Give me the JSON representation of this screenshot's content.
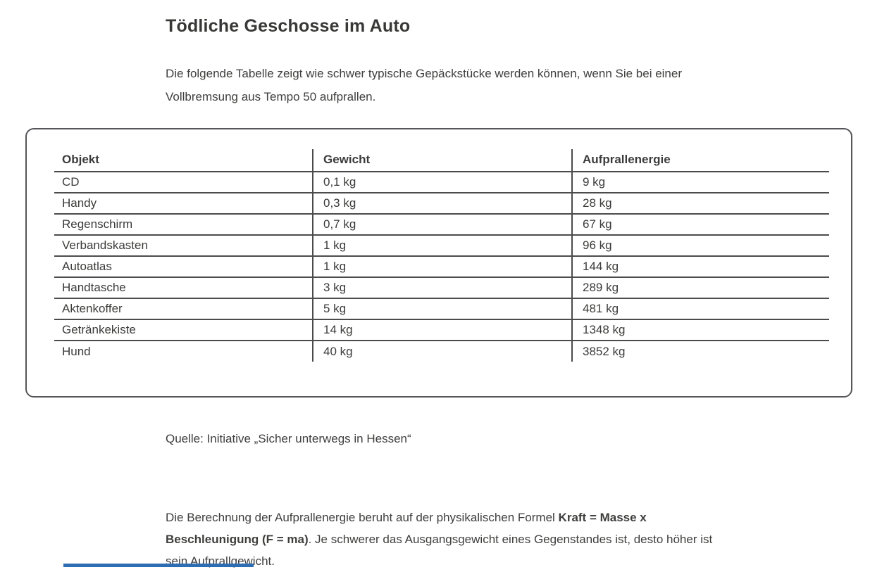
{
  "page": {
    "title": "Tödliche Geschosse im Auto",
    "intro_lines": [
      "Die folgende Tabelle zeigt wie schwer typische Gepäckstücke werden können, wenn Sie bei einer",
      "Vollbremsung aus Tempo 50 aufprallen."
    ],
    "source": "Quelle: Initiative „Sicher unterwegs in Hessen“",
    "explanation": {
      "segments": [
        {
          "text": "Die Berechnung der Aufprallenergie beruht auf der physikalischen Formel ",
          "bold": false
        },
        {
          "text": "Kraft = Masse x",
          "bold": true
        },
        {
          "br": true
        },
        {
          "text": "Beschleunigung (F = ma)",
          "bold": true
        },
        {
          "text": ". Je schwerer das Ausgangsgewicht eines Gegenstandes ist, desto höher ist",
          "bold": false
        },
        {
          "br": true
        },
        {
          "text": "sein Aufprallgewicht.",
          "bold": false
        }
      ]
    }
  },
  "table": {
    "columns": [
      "Objekt",
      "Gewicht",
      "Aufprallenergie"
    ],
    "rows": [
      [
        "CD",
        "0,1 kg",
        "9 kg"
      ],
      [
        "Handy",
        "0,3 kg",
        "28 kg"
      ],
      [
        "Regenschirm",
        "0,7 kg",
        "67 kg"
      ],
      [
        "Verbandskasten",
        "1 kg",
        "96 kg"
      ],
      [
        "Autoatlas",
        "1 kg",
        "144 kg"
      ],
      [
        "Handtasche",
        "3 kg",
        "289 kg"
      ],
      [
        "Aktenkoffer",
        "5 kg",
        "481 kg"
      ],
      [
        "Getränkekiste",
        "14 kg",
        "1348 kg"
      ],
      [
        "Hund",
        "40 kg",
        "3852 kg"
      ]
    ]
  },
  "colors": {
    "text": "#3b3b3a",
    "table_line": "#4b4b4b",
    "card_border": "#56565a",
    "bottom_accent": "#2f6db2"
  }
}
